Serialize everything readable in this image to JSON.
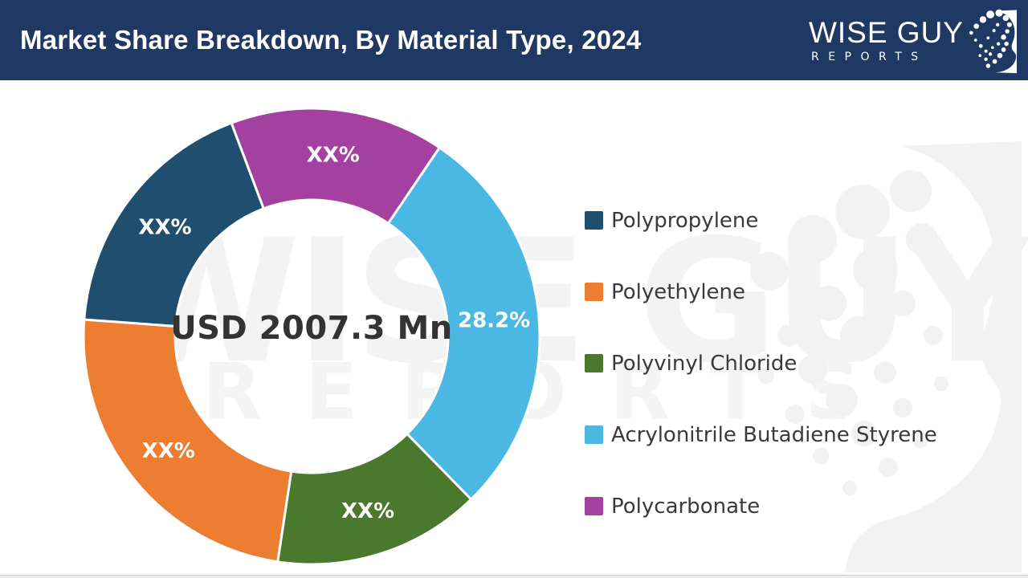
{
  "header": {
    "title": "Market Share Breakdown, By Material Type, 2024",
    "logo": {
      "line1": "WISE GUY",
      "line2": "REPORTS"
    }
  },
  "watermark": {
    "line1": "WISE GUY",
    "line2": "REPORTS"
  },
  "center_label": "USD 2007.3 Mn",
  "colors": {
    "header_bg": "#1F3864",
    "polypropylene": "#1F4E6F",
    "polyethylene": "#ED7D31",
    "polyvinyl_chloride": "#4A782C",
    "acrylonitrile_butadiene_styrene": "#4BB8E4",
    "polycarbonate": "#A340A0",
    "slice_label_text": "#ffffff",
    "center_label_text": "#333333",
    "legend_text": "#3a3a3a"
  },
  "legend": {
    "items": [
      {
        "id": "polypropylene",
        "label": "Polypropylene",
        "color": "#1F4E6F"
      },
      {
        "id": "polyethylene",
        "label": "Polyethylene",
        "color": "#ED7D31"
      },
      {
        "id": "polyvinyl-chloride",
        "label": "Polyvinyl Chloride",
        "color": "#4A782C"
      },
      {
        "id": "acrylonitrile-butadiene-styrene",
        "label": "Acrylonitrile Butadiene Styrene",
        "color": "#4BB8E4"
      },
      {
        "id": "polycarbonate",
        "label": "Polycarbonate",
        "color": "#A340A0"
      }
    ]
  },
  "chart_data": {
    "type": "pie",
    "subtype": "donut",
    "title": "Market Share Breakdown, By Material Type, 2024",
    "center_label": "USD 2007.3 Mn",
    "legend_position": "right",
    "start_angle_deg_clockwise_from_north": -20.6,
    "slices": [
      {
        "id": "polycarbonate",
        "label": "Polycarbonate",
        "display_label": "XX%",
        "value_pct": 15.2,
        "value_labeled": false,
        "color": "#A340A0"
      },
      {
        "id": "acrylonitrile-butadiene-styrene",
        "label": "Acrylonitrile Butadiene Styrene",
        "display_label": "28.2%",
        "value_pct": 28.2,
        "value_labeled": true,
        "color": "#4BB8E4"
      },
      {
        "id": "polyvinyl-chloride",
        "label": "Polyvinyl Chloride",
        "display_label": "XX%",
        "value_pct": 14.7,
        "value_labeled": false,
        "color": "#4A782C"
      },
      {
        "id": "polyethylene",
        "label": "Polyethylene",
        "display_label": "XX%",
        "value_pct": 23.8,
        "value_labeled": false,
        "color": "#ED7D31"
      },
      {
        "id": "polypropylene",
        "label": "Polypropylene",
        "display_label": "XX%",
        "value_pct": 18.1,
        "value_labeled": false,
        "color": "#1F4E6F"
      }
    ]
  }
}
